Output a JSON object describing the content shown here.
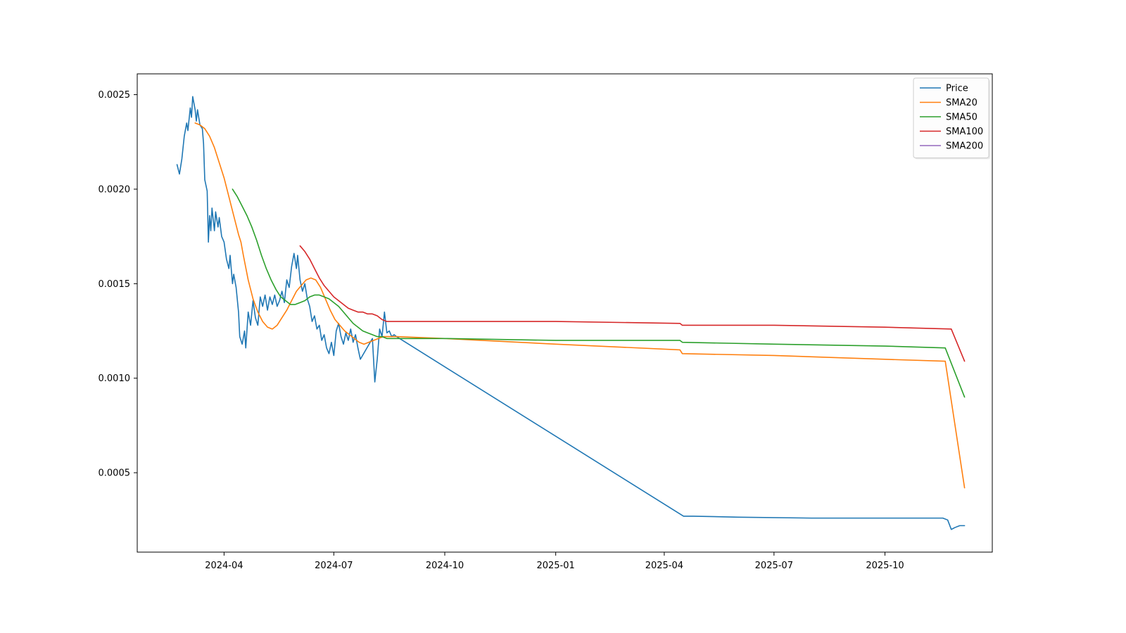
{
  "figure": {
    "background": "#ffffff",
    "axes_color": "#000000",
    "tick_label_color": "#000000"
  },
  "chart_data": {
    "type": "line",
    "title": "",
    "xlabel": "",
    "ylabel": "",
    "grid": false,
    "x_domain": [
      "2024-01-20",
      "2025-12-29"
    ],
    "y_domain": [
      8e-05,
      0.00261
    ],
    "x_ticks": [
      {
        "value": "2024-04-01",
        "label": "2024-04"
      },
      {
        "value": "2024-07-01",
        "label": "2024-07"
      },
      {
        "value": "2024-10-01",
        "label": "2024-10"
      },
      {
        "value": "2025-01-01",
        "label": "2025-01"
      },
      {
        "value": "2025-04-01",
        "label": "2025-04"
      },
      {
        "value": "2025-07-01",
        "label": "2025-07"
      },
      {
        "value": "2025-10-01",
        "label": "2025-10"
      }
    ],
    "y_ticks": [
      {
        "value": 0.0005,
        "label": "0.0005"
      },
      {
        "value": 0.001,
        "label": "0.0010"
      },
      {
        "value": 0.0015,
        "label": "0.0015"
      },
      {
        "value": 0.002,
        "label": "0.0020"
      },
      {
        "value": 0.0025,
        "label": "0.0025"
      }
    ],
    "legend": {
      "position": "upper right",
      "border_color": "#cccccc",
      "background": "#ffffff",
      "entries": [
        "Price",
        "SMA20",
        "SMA50",
        "SMA100",
        "SMA200"
      ]
    },
    "series": [
      {
        "name": "Price",
        "color": "#1f77b4",
        "points": [
          [
            "2024-02-22",
            0.00213
          ],
          [
            "2024-02-24",
            0.00208
          ],
          [
            "2024-02-26",
            0.00216
          ],
          [
            "2024-02-28",
            0.00228
          ],
          [
            "2024-03-01",
            0.00235
          ],
          [
            "2024-03-02",
            0.00231
          ],
          [
            "2024-03-04",
            0.00243
          ],
          [
            "2024-03-05",
            0.00238
          ],
          [
            "2024-03-06",
            0.00249
          ],
          [
            "2024-03-08",
            0.00242
          ],
          [
            "2024-03-09",
            0.00236
          ],
          [
            "2024-03-10",
            0.00242
          ],
          [
            "2024-03-12",
            0.00234
          ],
          [
            "2024-03-14",
            0.00232
          ],
          [
            "2024-03-15",
            0.00224
          ],
          [
            "2024-03-16",
            0.00205
          ],
          [
            "2024-03-18",
            0.00199
          ],
          [
            "2024-03-19",
            0.00172
          ],
          [
            "2024-03-20",
            0.00186
          ],
          [
            "2024-03-21",
            0.00178
          ],
          [
            "2024-03-22",
            0.0019
          ],
          [
            "2024-03-24",
            0.00178
          ],
          [
            "2024-03-25",
            0.00188
          ],
          [
            "2024-03-27",
            0.0018
          ],
          [
            "2024-03-28",
            0.00185
          ],
          [
            "2024-03-30",
            0.00175
          ],
          [
            "2024-04-01",
            0.00172
          ],
          [
            "2024-04-03",
            0.00163
          ],
          [
            "2024-04-05",
            0.00158
          ],
          [
            "2024-04-06",
            0.00165
          ],
          [
            "2024-04-08",
            0.0015
          ],
          [
            "2024-04-09",
            0.00155
          ],
          [
            "2024-04-11",
            0.00148
          ],
          [
            "2024-04-13",
            0.00135
          ],
          [
            "2024-04-14",
            0.00122
          ],
          [
            "2024-04-16",
            0.00118
          ],
          [
            "2024-04-18",
            0.00125
          ],
          [
            "2024-04-19",
            0.00116
          ],
          [
            "2024-04-21",
            0.00135
          ],
          [
            "2024-04-23",
            0.00128
          ],
          [
            "2024-04-25",
            0.00141
          ],
          [
            "2024-04-27",
            0.00132
          ],
          [
            "2024-04-29",
            0.00128
          ],
          [
            "2024-05-01",
            0.00143
          ],
          [
            "2024-05-03",
            0.00138
          ],
          [
            "2024-05-05",
            0.00144
          ],
          [
            "2024-05-07",
            0.00136
          ],
          [
            "2024-05-09",
            0.00143
          ],
          [
            "2024-05-11",
            0.00139
          ],
          [
            "2024-05-13",
            0.00144
          ],
          [
            "2024-05-15",
            0.00138
          ],
          [
            "2024-05-17",
            0.00141
          ],
          [
            "2024-05-19",
            0.00146
          ],
          [
            "2024-05-21",
            0.0014
          ],
          [
            "2024-05-23",
            0.00152
          ],
          [
            "2024-05-25",
            0.00148
          ],
          [
            "2024-05-27",
            0.00159
          ],
          [
            "2024-05-29",
            0.00166
          ],
          [
            "2024-05-31",
            0.00158
          ],
          [
            "2024-06-01",
            0.00165
          ],
          [
            "2024-06-03",
            0.00152
          ],
          [
            "2024-06-05",
            0.00146
          ],
          [
            "2024-06-07",
            0.0015
          ],
          [
            "2024-06-09",
            0.00142
          ],
          [
            "2024-06-11",
            0.00138
          ],
          [
            "2024-06-13",
            0.0013
          ],
          [
            "2024-06-15",
            0.00133
          ],
          [
            "2024-06-17",
            0.00126
          ],
          [
            "2024-06-19",
            0.00128
          ],
          [
            "2024-06-21",
            0.0012
          ],
          [
            "2024-06-23",
            0.00123
          ],
          [
            "2024-06-25",
            0.00116
          ],
          [
            "2024-06-27",
            0.00113
          ],
          [
            "2024-06-29",
            0.00119
          ],
          [
            "2024-07-01",
            0.00112
          ],
          [
            "2024-07-03",
            0.00125
          ],
          [
            "2024-07-05",
            0.00129
          ],
          [
            "2024-07-07",
            0.00122
          ],
          [
            "2024-07-09",
            0.00118
          ],
          [
            "2024-07-11",
            0.00124
          ],
          [
            "2024-07-13",
            0.0012
          ],
          [
            "2024-07-15",
            0.00126
          ],
          [
            "2024-07-17",
            0.00119
          ],
          [
            "2024-07-19",
            0.00123
          ],
          [
            "2024-07-21",
            0.00116
          ],
          [
            "2024-07-23",
            0.0011
          ],
          [
            "2024-08-02",
            0.00121
          ],
          [
            "2024-08-04",
            0.00098
          ],
          [
            "2024-08-06",
            0.0011
          ],
          [
            "2024-08-08",
            0.00126
          ],
          [
            "2024-08-10",
            0.00122
          ],
          [
            "2024-08-12",
            0.00135
          ],
          [
            "2024-08-14",
            0.00124
          ],
          [
            "2024-08-16",
            0.00125
          ],
          [
            "2024-08-18",
            0.00122
          ],
          [
            "2024-08-20",
            0.00123
          ],
          [
            "2024-08-22",
            0.00122
          ],
          [
            "2025-04-17",
            0.00027
          ],
          [
            "2025-04-25",
            0.00027
          ],
          [
            "2025-06-01",
            0.000265
          ],
          [
            "2025-08-01",
            0.00026
          ],
          [
            "2025-10-01",
            0.00026
          ],
          [
            "2025-11-18",
            0.00026
          ],
          [
            "2025-11-22",
            0.00025
          ],
          [
            "2025-11-25",
            0.0002
          ],
          [
            "2025-11-28",
            0.00021
          ],
          [
            "2025-12-02",
            0.00022
          ],
          [
            "2025-12-06",
            0.00022
          ]
        ]
      },
      {
        "name": "SMA20",
        "color": "#ff7f0e",
        "points": [
          [
            "2024-03-08",
            0.00235
          ],
          [
            "2024-03-12",
            0.00234
          ],
          [
            "2024-03-16",
            0.00232
          ],
          [
            "2024-03-20",
            0.00228
          ],
          [
            "2024-03-24",
            0.00222
          ],
          [
            "2024-03-28",
            0.00214
          ],
          [
            "2024-04-01",
            0.00206
          ],
          [
            "2024-04-05",
            0.00196
          ],
          [
            "2024-04-09",
            0.00186
          ],
          [
            "2024-04-13",
            0.00176
          ],
          [
            "2024-04-15",
            0.00172
          ],
          [
            "2024-04-17",
            0.00165
          ],
          [
            "2024-04-21",
            0.00152
          ],
          [
            "2024-04-25",
            0.00142
          ],
          [
            "2024-04-29",
            0.00135
          ],
          [
            "2024-05-03",
            0.0013
          ],
          [
            "2024-05-07",
            0.00127
          ],
          [
            "2024-05-11",
            0.00126
          ],
          [
            "2024-05-15",
            0.00128
          ],
          [
            "2024-05-19",
            0.00132
          ],
          [
            "2024-05-23",
            0.00136
          ],
          [
            "2024-05-27",
            0.00141
          ],
          [
            "2024-05-31",
            0.00146
          ],
          [
            "2024-06-04",
            0.00149
          ],
          [
            "2024-06-08",
            0.00152
          ],
          [
            "2024-06-12",
            0.00153
          ],
          [
            "2024-06-16",
            0.00152
          ],
          [
            "2024-06-20",
            0.00148
          ],
          [
            "2024-06-24",
            0.00142
          ],
          [
            "2024-06-28",
            0.00136
          ],
          [
            "2024-07-02",
            0.00131
          ],
          [
            "2024-07-06",
            0.00128
          ],
          [
            "2024-07-10",
            0.00125
          ],
          [
            "2024-07-14",
            0.00123
          ],
          [
            "2024-07-18",
            0.00121
          ],
          [
            "2024-07-22",
            0.00119
          ],
          [
            "2024-07-26",
            0.00118
          ],
          [
            "2024-07-30",
            0.00119
          ],
          [
            "2024-08-03",
            0.0012
          ],
          [
            "2024-08-07",
            0.00121
          ],
          [
            "2024-08-11",
            0.00122
          ],
          [
            "2024-08-15",
            0.00122
          ],
          [
            "2024-08-22",
            0.00122
          ],
          [
            "2024-10-01",
            0.00121
          ],
          [
            "2025-01-01",
            0.00118
          ],
          [
            "2025-04-14",
            0.00115
          ],
          [
            "2025-04-16",
            0.00113
          ],
          [
            "2025-07-01",
            0.00112
          ],
          [
            "2025-10-01",
            0.0011
          ],
          [
            "2025-11-20",
            0.00109
          ],
          [
            "2025-12-06",
            0.00042
          ]
        ]
      },
      {
        "name": "SMA50",
        "color": "#2ca02c",
        "points": [
          [
            "2024-04-08",
            0.002
          ],
          [
            "2024-04-12",
            0.00196
          ],
          [
            "2024-04-16",
            0.00191
          ],
          [
            "2024-04-20",
            0.00186
          ],
          [
            "2024-04-24",
            0.0018
          ],
          [
            "2024-04-28",
            0.00173
          ],
          [
            "2024-05-02",
            0.00165
          ],
          [
            "2024-05-06",
            0.00158
          ],
          [
            "2024-05-10",
            0.00152
          ],
          [
            "2024-05-14",
            0.00147
          ],
          [
            "2024-05-18",
            0.00143
          ],
          [
            "2024-05-22",
            0.00141
          ],
          [
            "2024-05-26",
            0.00139
          ],
          [
            "2024-05-30",
            0.00139
          ],
          [
            "2024-06-03",
            0.0014
          ],
          [
            "2024-06-07",
            0.00141
          ],
          [
            "2024-06-11",
            0.00143
          ],
          [
            "2024-06-15",
            0.00144
          ],
          [
            "2024-06-19",
            0.00144
          ],
          [
            "2024-06-23",
            0.00143
          ],
          [
            "2024-06-27",
            0.00142
          ],
          [
            "2024-07-01",
            0.0014
          ],
          [
            "2024-07-05",
            0.00138
          ],
          [
            "2024-07-09",
            0.00135
          ],
          [
            "2024-07-13",
            0.00132
          ],
          [
            "2024-07-17",
            0.00129
          ],
          [
            "2024-07-21",
            0.00127
          ],
          [
            "2024-07-25",
            0.00125
          ],
          [
            "2024-07-29",
            0.00124
          ],
          [
            "2024-08-02",
            0.00123
          ],
          [
            "2024-08-06",
            0.00122
          ],
          [
            "2024-08-10",
            0.00122
          ],
          [
            "2024-08-14",
            0.00121
          ],
          [
            "2024-08-22",
            0.00121
          ],
          [
            "2024-10-01",
            0.00121
          ],
          [
            "2025-01-01",
            0.0012
          ],
          [
            "2025-04-14",
            0.0012
          ],
          [
            "2025-04-16",
            0.00119
          ],
          [
            "2025-07-01",
            0.00118
          ],
          [
            "2025-10-01",
            0.00117
          ],
          [
            "2025-11-20",
            0.00116
          ],
          [
            "2025-12-06",
            0.0009
          ]
        ]
      },
      {
        "name": "SMA100",
        "color": "#d62728",
        "points": [
          [
            "2024-06-03",
            0.0017
          ],
          [
            "2024-06-07",
            0.00167
          ],
          [
            "2024-06-11",
            0.00163
          ],
          [
            "2024-06-15",
            0.00158
          ],
          [
            "2024-06-19",
            0.00153
          ],
          [
            "2024-06-23",
            0.00149
          ],
          [
            "2024-06-27",
            0.00146
          ],
          [
            "2024-07-01",
            0.00143
          ],
          [
            "2024-07-05",
            0.00141
          ],
          [
            "2024-07-09",
            0.00139
          ],
          [
            "2024-07-13",
            0.00137
          ],
          [
            "2024-07-17",
            0.00136
          ],
          [
            "2024-07-21",
            0.00135
          ],
          [
            "2024-07-25",
            0.00135
          ],
          [
            "2024-07-29",
            0.00134
          ],
          [
            "2024-08-02",
            0.00134
          ],
          [
            "2024-08-06",
            0.00133
          ],
          [
            "2024-08-10",
            0.00131
          ],
          [
            "2024-08-14",
            0.0013
          ],
          [
            "2024-08-22",
            0.0013
          ],
          [
            "2024-10-01",
            0.0013
          ],
          [
            "2025-01-01",
            0.0013
          ],
          [
            "2025-04-14",
            0.00129
          ],
          [
            "2025-04-16",
            0.00128
          ],
          [
            "2025-07-01",
            0.00128
          ],
          [
            "2025-10-01",
            0.00127
          ],
          [
            "2025-11-25",
            0.00126
          ],
          [
            "2025-12-06",
            0.00109
          ]
        ]
      },
      {
        "name": "SMA200",
        "color": "#9467bd",
        "points": []
      }
    ]
  }
}
